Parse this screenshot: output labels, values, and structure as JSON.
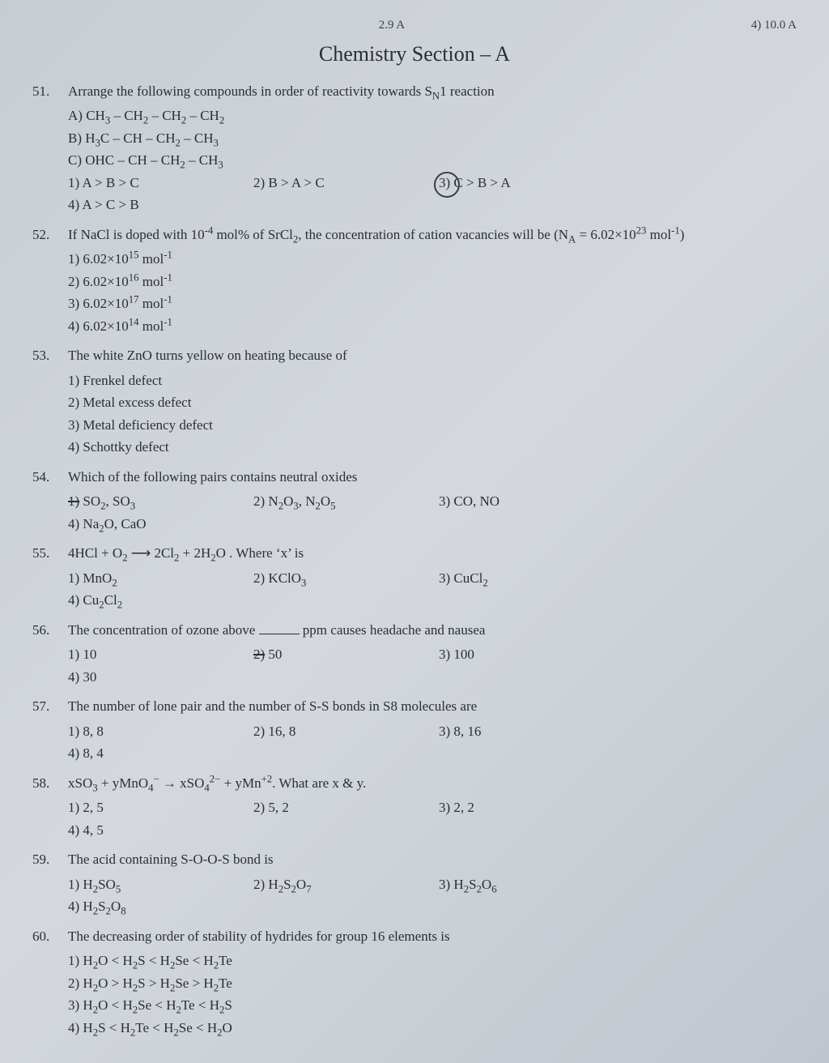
{
  "header": {
    "right1": "2.9 A",
    "right2": "4) 10.0 A"
  },
  "section_title": "Chemistry Section – A",
  "questions": [
    {
      "num": "51.",
      "stem": "Arrange the following compounds in order of reactivity towards SN1 reaction",
      "abc": {
        "a": "A) CH₃ – CH₂ – CH₂ – CH₂",
        "b": "B) H₃C – CH – CH₂ – CH₃",
        "c": "C) OHC – CH – CH₂ – CH₃"
      },
      "opts": [
        "1) A > B > C",
        "2) B > A > C",
        "3) C > B > A",
        "4) A > C > B"
      ]
    },
    {
      "num": "52.",
      "stem_pre": "If NaCl is doped with 10⁻⁴ mol% of SrCl₂, the concentration of cation vacancies will be (N",
      "stem_sub": "A",
      "stem_post": " = 6.02×10²³ mol⁻¹)",
      "opts": [
        "1) 6.02×10¹⁵ mol⁻¹",
        "2) 6.02×10¹⁶ mol⁻¹",
        "3) 6.02×10¹⁷ mol⁻¹",
        "4) 6.02×10¹⁴ mol⁻¹"
      ]
    },
    {
      "num": "53.",
      "stem": "The white ZnO turns yellow on heating because of",
      "opts": [
        "1) Frenkel defect",
        "2) Metal excess defect",
        "3) Metal deficiency defect",
        "4) Schottky defect"
      ]
    },
    {
      "num": "54.",
      "stem": "Which of the following pairs contains neutral oxides",
      "opts": [
        "1) SO₂, SO₃",
        "2) N₂O₃, N₂O₅",
        "3) CO, NO",
        "4) Na₂O, CaO"
      ]
    },
    {
      "num": "55.",
      "stem": "4HCl + O₂ ⟶ 2Cl₂ + 2H₂O . Where ‘x’ is",
      "opts": [
        "1) MnO₂",
        "2) KClO₃",
        "3) CuCl₂",
        "4) Cu₂Cl₂"
      ]
    },
    {
      "num": "56.",
      "stem_pre": "The concentration of ozone above ",
      "stem_post": " ppm causes headache and nausea",
      "opts": [
        "1) 10",
        "2) 50",
        "3) 100",
        "4) 30"
      ]
    },
    {
      "num": "57.",
      "stem": "The number of lone pair and the number of S-S bonds in S8 molecules are",
      "opts": [
        "1) 8, 8",
        "2) 16, 8",
        "3) 8, 16",
        "4) 8, 4"
      ]
    },
    {
      "num": "58.",
      "stem": "xSO₃ + yMnO₄⁻ → xSO₄²⁻ + yMn⁺². What are x & y.",
      "opts": [
        "1) 2, 5",
        "2) 5, 2",
        "3) 2, 2",
        "4) 4, 5"
      ]
    },
    {
      "num": "59.",
      "stem": "The acid containing S-O-O-S bond is",
      "opts": [
        "1) H₂SO₅",
        "2) H₂S₂O₇",
        "3) H₂S₂O₆",
        "4) H₂S₂O₈"
      ]
    },
    {
      "num": "60.",
      "stem": "The decreasing order of stability of hydrides for group 16 elements is",
      "opts": [
        "1) H₂O < H₂S < H₂Se < H₂Te",
        "2) H₂O > H₂S > H₂Se > H₂Te",
        "3) H₂O < H₂Se < H₂Te < H₂S",
        "4) H₂S < H₂Te < H₂Se < H₂O"
      ]
    }
  ]
}
